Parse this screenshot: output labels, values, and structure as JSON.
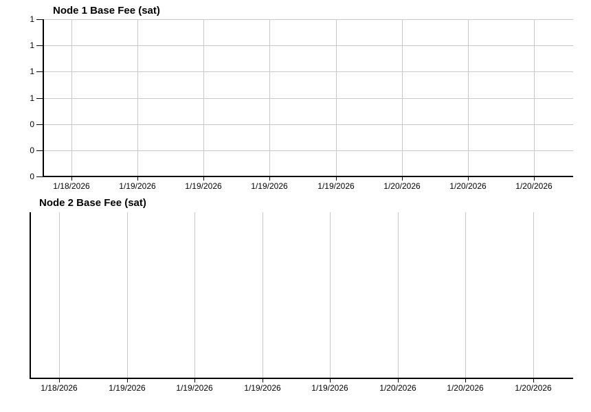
{
  "colors": {
    "background": "#ffffff",
    "axis": "#000000",
    "grid": "#c8c8c8",
    "text": "#000000"
  },
  "chart_data": [
    {
      "type": "line",
      "title": "Node 1 Base Fee (sat)",
      "xlabel": "",
      "ylabel": "",
      "ylim": [
        0,
        1
      ],
      "x_tick_labels": [
        "1/18/2026",
        "1/19/2026",
        "1/19/2026",
        "1/19/2026",
        "1/19/2026",
        "1/20/2026",
        "1/20/2026",
        "1/20/2026"
      ],
      "y_tick_labels": [
        "1",
        "1",
        "1",
        "1",
        "0",
        "0",
        "0"
      ],
      "series": [],
      "grid": {
        "horizontal_gridlines": true,
        "vertical_gridlines": true
      },
      "legend": "none"
    },
    {
      "type": "line",
      "title": "Node 2 Base Fee (sat)",
      "xlabel": "",
      "ylabel": "",
      "x_tick_labels": [
        "1/18/2026",
        "1/19/2026",
        "1/19/2026",
        "1/19/2026",
        "1/19/2026",
        "1/20/2026",
        "1/20/2026",
        "1/20/2026"
      ],
      "y_tick_labels": [],
      "series": [],
      "grid": {
        "horizontal_gridlines": false,
        "vertical_gridlines": true
      },
      "legend": "none"
    }
  ]
}
